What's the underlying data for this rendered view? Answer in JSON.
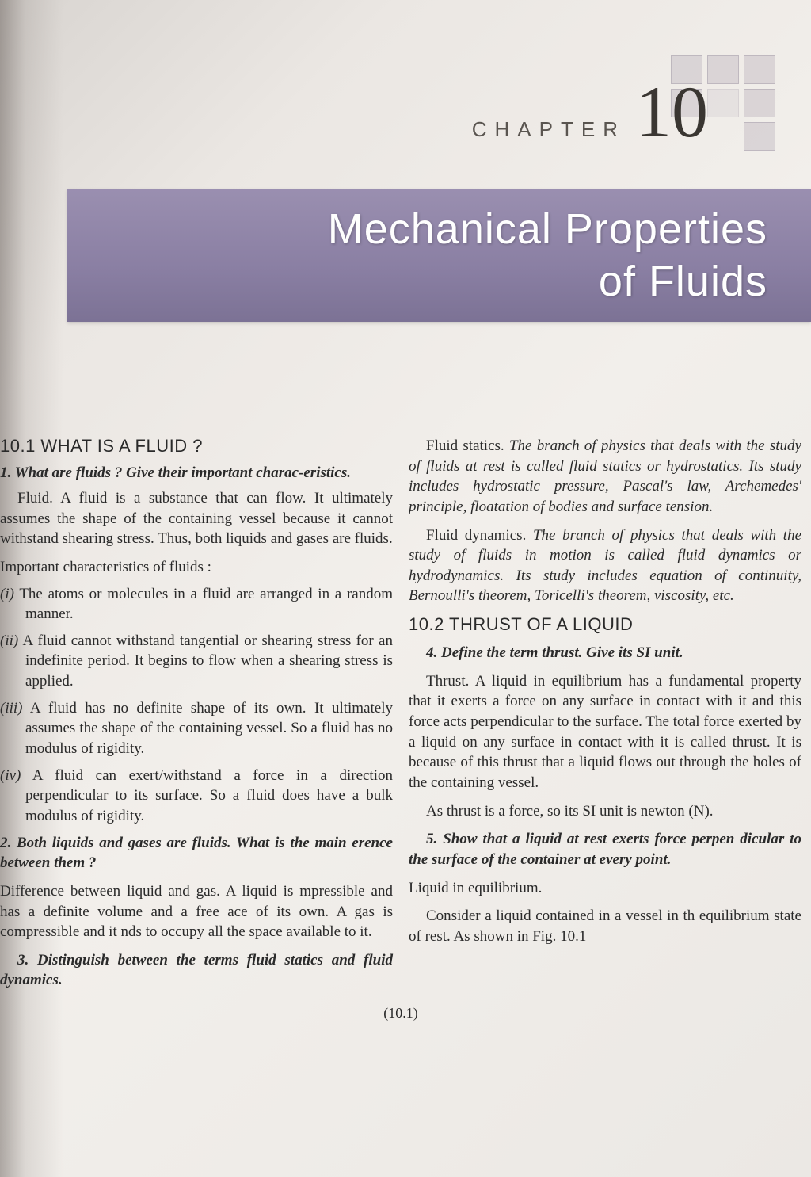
{
  "chapter": {
    "label": "CHAPTER",
    "number": "10",
    "title_line1": "Mechanical Properties",
    "title_line2": "of Fluids"
  },
  "sections": {
    "s1": {
      "heading": "10.1 WHAT IS A FLUID ?",
      "q1": "1. What are fluids ? Give their important charac-eristics.",
      "fluid_def": "Fluid. A fluid is a substance that can flow. It ultimately assumes the shape of the containing vessel because it cannot withstand shearing stress. Thus, both liquids and gases are fluids.",
      "charac_intro": "Important characteristics of fluids :",
      "i1": "(i) The atoms or molecules in a fluid are arranged in a random manner.",
      "i2": "(ii) A fluid cannot withstand tangential or shearing stress for an indefinite period. It begins to flow when a shearing stress is applied.",
      "i3": "(iii) A fluid has no definite shape of its own. It ultimately assumes the shape of the containing vessel. So a fluid has no modulus of rigidity.",
      "i4": "(iv) A fluid can exert/withstand a force in a direction perpendicular to its surface. So a fluid does have a bulk modulus of rigidity.",
      "q2": "2. Both liquids and gases are fluids. What is the main erence between them ?",
      "diff": "Difference between liquid and gas. A liquid is mpressible and has a definite volume and a free ace of its own. A gas is compressible and it nds to occupy all the space available to it.",
      "q3": "3. Distinguish between the terms fluid statics and fluid dynamics.",
      "statics_label": "Fluid statics.",
      "statics": "The branch of physics that deals with the study of fluids at rest is called fluid statics or hydrostatics. Its study includes hydrostatic pressure, Pascal's law, Archemedes' principle, floatation of bodies and surface tension.",
      "dynamics_label": "Fluid dynamics.",
      "dynamics": "The branch of physics that deals with the study of fluids in motion is called fluid dynamics or hydrodynamics. Its study includes equation of continuity, Bernoulli's theorem, Toricelli's theorem, viscosity, etc."
    },
    "s2": {
      "heading": "10.2 THRUST OF A LIQUID",
      "q4": "4. Define the term thrust. Give its SI unit.",
      "thrust_label": "Thrust.",
      "thrust1": "A liquid in equilibrium has a fundamental property that it exerts a force on any surface in contact with it and this force acts perpendicular to the surface. The total force exerted by a liquid on any surface in contact with it is called thrust. It is because of this thrust that a liquid flows out through the holes of the containing vessel.",
      "thrust2": "As thrust is a force, so its SI unit is newton (N).",
      "q5": "5. Show that a liquid at rest exerts force perpen dicular to the surface of the container at every point.",
      "liq_eq": "Liquid in equilibrium.",
      "liq_eq_body": "Consider a liquid contained in a vessel in th equilibrium state of rest. As shown in Fig. 10.1"
    }
  },
  "page_number": "(10.1)"
}
